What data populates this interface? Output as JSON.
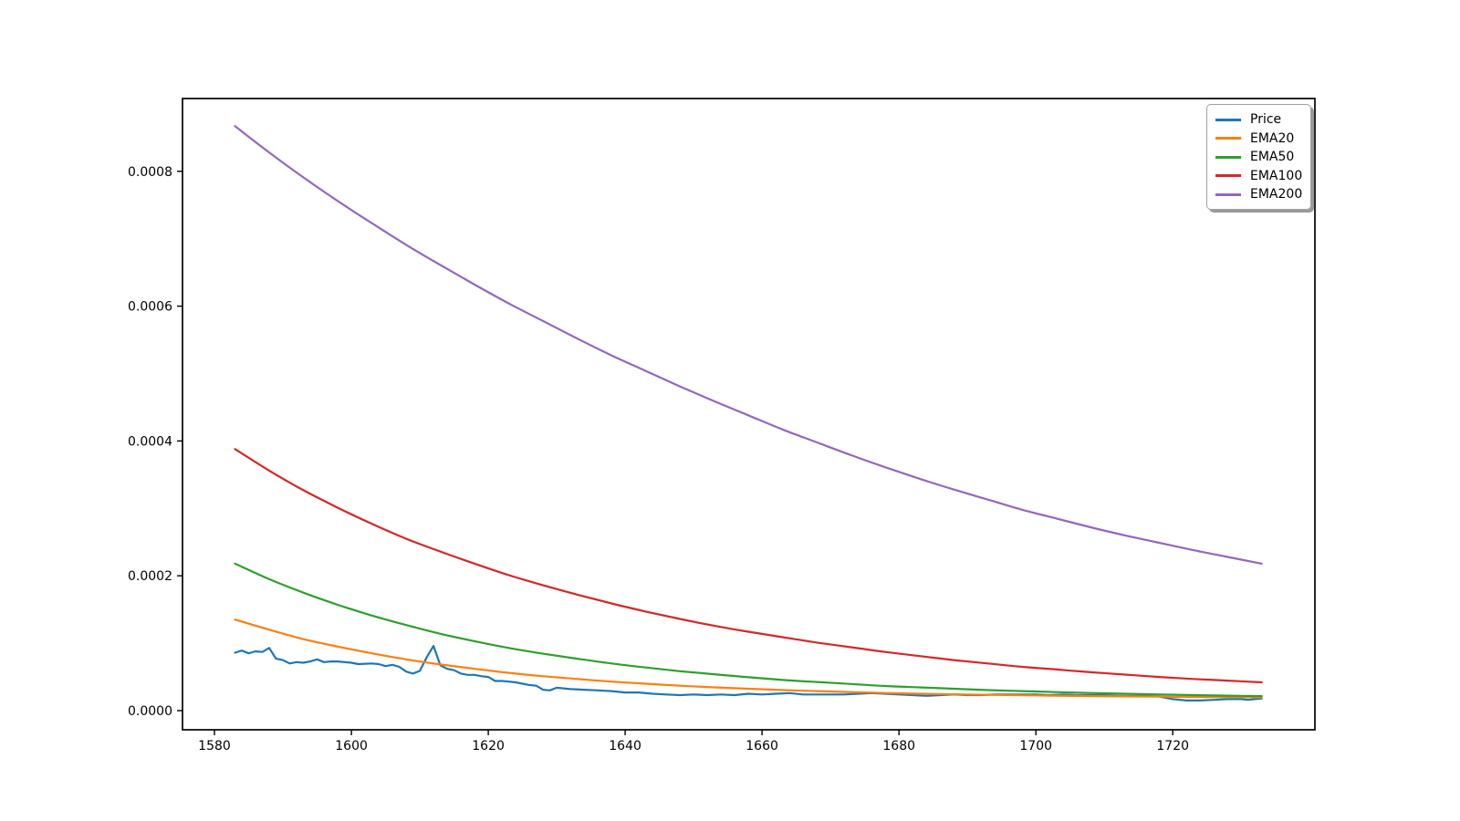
{
  "figure": {
    "background": "#ffffff"
  },
  "chart_data": {
    "type": "line",
    "title": "",
    "xlabel": "",
    "ylabel": "",
    "grid": false,
    "xlim": [
      1575.33,
      1740.77
    ],
    "ylim": [
      -2.84e-05,
      0.000908
    ],
    "xticks": [
      1580,
      1600,
      1620,
      1640,
      1660,
      1680,
      1700,
      1720
    ],
    "xtick_labels": [
      "1580",
      "1600",
      "1620",
      "1640",
      "1660",
      "1680",
      "1700",
      "1720"
    ],
    "ytick_values": [
      0.0,
      0.0002,
      0.0004,
      0.0006,
      0.0008
    ],
    "ytick_labels": [
      "0.0000",
      "0.0002",
      "0.0004",
      "0.0006",
      "0.0008"
    ],
    "legend": {
      "position": "upper right",
      "shadow": true
    },
    "series": [
      {
        "name": "Price",
        "color": "#1f77b4",
        "smooth": false,
        "x": [
          1583,
          1584,
          1585,
          1586,
          1587,
          1588,
          1589,
          1590,
          1591,
          1592,
          1593,
          1594,
          1595,
          1596,
          1597,
          1598,
          1600,
          1601,
          1603,
          1604,
          1605,
          1606,
          1607,
          1608,
          1609,
          1610,
          1611,
          1612,
          1613,
          1614,
          1615,
          1616,
          1617,
          1618,
          1619,
          1620,
          1621,
          1622,
          1623,
          1624,
          1625,
          1626,
          1627,
          1628,
          1629,
          1630,
          1631,
          1632,
          1634,
          1636,
          1638,
          1640,
          1642,
          1644,
          1646,
          1648,
          1650,
          1652,
          1654,
          1656,
          1658,
          1660,
          1662,
          1664,
          1666,
          1668,
          1670,
          1672,
          1674,
          1676,
          1678,
          1680,
          1682,
          1684,
          1686,
          1688,
          1690,
          1692,
          1694,
          1696,
          1698,
          1700,
          1702,
          1704,
          1706,
          1708,
          1710,
          1712,
          1714,
          1716,
          1718,
          1720,
          1722,
          1724,
          1726,
          1728,
          1730,
          1731,
          1733
        ],
        "y": [
          8.6e-05,
          8.9e-05,
          8.5e-05,
          8.8e-05,
          8.7e-05,
          9.3e-05,
          7.7e-05,
          7.5e-05,
          7e-05,
          7.2e-05,
          7.1e-05,
          7.3e-05,
          7.6e-05,
          7.2e-05,
          7.3e-05,
          7.3e-05,
          7.1e-05,
          6.9e-05,
          7e-05,
          6.9e-05,
          6.6e-05,
          6.8e-05,
          6.5e-05,
          5.8e-05,
          5.5e-05,
          5.9e-05,
          7.9e-05,
          9.6e-05,
          6.7e-05,
          6.2e-05,
          6e-05,
          5.5e-05,
          5.3e-05,
          5.3e-05,
          5.1e-05,
          5e-05,
          4.4e-05,
          4.4e-05,
          4.3e-05,
          4.2e-05,
          4e-05,
          3.8e-05,
          3.7e-05,
          3.1e-05,
          3e-05,
          3.4e-05,
          3.3e-05,
          3.2e-05,
          3.1e-05,
          3e-05,
          2.9e-05,
          2.7e-05,
          2.7e-05,
          2.5e-05,
          2.4e-05,
          2.3e-05,
          2.4e-05,
          2.3e-05,
          2.4e-05,
          2.3e-05,
          2.5e-05,
          2.4e-05,
          2.5e-05,
          2.6e-05,
          2.4e-05,
          2.4e-05,
          2.4e-05,
          2.4e-05,
          2.5e-05,
          2.6e-05,
          2.5e-05,
          2.4e-05,
          2.3e-05,
          2.2e-05,
          2.3e-05,
          2.4e-05,
          2.3e-05,
          2.3e-05,
          2.4e-05,
          2.4e-05,
          2.4e-05,
          2.4e-05,
          2.3e-05,
          2.4e-05,
          2.3e-05,
          2.3e-05,
          2.3e-05,
          2.2e-05,
          2.2e-05,
          2.2e-05,
          2.1e-05,
          1.7e-05,
          1.5e-05,
          1.5e-05,
          1.6e-05,
          1.7e-05,
          1.7e-05,
          1.6e-05,
          1.8e-05
        ]
      },
      {
        "name": "EMA20",
        "color": "#ff7f0e",
        "smooth": true,
        "x": [
          1583,
          1588,
          1593,
          1598,
          1603,
          1608,
          1613,
          1618,
          1623,
          1628,
          1633,
          1638,
          1643,
          1648,
          1653,
          1658,
          1663,
          1668,
          1673,
          1678,
          1683,
          1688,
          1693,
          1698,
          1703,
          1708,
          1713,
          1718,
          1723,
          1728,
          1733
        ],
        "y": [
          0.000135,
          0.00012,
          0.000106,
          9.5e-05,
          8.5e-05,
          7.6e-05,
          6.85e-05,
          6.2e-05,
          5.6e-05,
          5.1e-05,
          4.7e-05,
          4.3e-05,
          4e-05,
          3.7e-05,
          3.45e-05,
          3.25e-05,
          3.05e-05,
          2.9e-05,
          2.75e-05,
          2.62e-05,
          2.51e-05,
          2.42e-05,
          2.34e-05,
          2.27e-05,
          2.21e-05,
          2.15e-05,
          2.11e-05,
          2.07e-05,
          2.03e-05,
          2e-05,
          1.96e-05
        ]
      },
      {
        "name": "EMA50",
        "color": "#2ca02c",
        "smooth": true,
        "x": [
          1583,
          1588,
          1593,
          1598,
          1603,
          1608,
          1613,
          1618,
          1623,
          1628,
          1633,
          1638,
          1643,
          1648,
          1653,
          1658,
          1663,
          1668,
          1673,
          1678,
          1683,
          1688,
          1693,
          1698,
          1703,
          1708,
          1713,
          1718,
          1723,
          1728,
          1733
        ],
        "y": [
          0.000218,
          0.000195,
          0.000175,
          0.000157,
          0.000141,
          0.000127,
          0.000114,
          0.000103,
          9.3e-05,
          8.45e-05,
          7.7e-05,
          7e-05,
          6.4e-05,
          5.85e-05,
          5.4e-05,
          4.95e-05,
          4.55e-05,
          4.25e-05,
          3.95e-05,
          3.65e-05,
          3.45e-05,
          3.25e-05,
          3.05e-05,
          2.9e-05,
          2.75e-05,
          2.62e-05,
          2.5e-05,
          2.4e-05,
          2.3e-05,
          2.22e-05,
          2.15e-05
        ]
      },
      {
        "name": "EMA100",
        "color": "#d62728",
        "smooth": true,
        "x": [
          1583,
          1588,
          1593,
          1598,
          1603,
          1608,
          1613,
          1618,
          1623,
          1628,
          1633,
          1638,
          1643,
          1648,
          1653,
          1658,
          1663,
          1668,
          1673,
          1678,
          1683,
          1688,
          1693,
          1698,
          1703,
          1708,
          1713,
          1718,
          1723,
          1728,
          1733
        ],
        "y": [
          0.000388,
          0.000356,
          0.000327,
          0.000301,
          0.000277,
          0.000255,
          0.000236,
          0.000218,
          0.000201,
          0.000186,
          0.000172,
          0.000159,
          0.000147,
          0.000136,
          0.000126,
          0.000117,
          0.000109,
          0.000101,
          9.4e-05,
          8.7e-05,
          8.1e-05,
          7.5e-05,
          7e-05,
          6.5e-05,
          6.1e-05,
          5.7e-05,
          5.35e-05,
          5e-05,
          4.7e-05,
          4.45e-05,
          4.2e-05
        ]
      },
      {
        "name": "EMA200",
        "color": "#9467bd",
        "smooth": true,
        "x": [
          1583,
          1588,
          1593,
          1598,
          1603,
          1608,
          1613,
          1618,
          1623,
          1628,
          1633,
          1638,
          1643,
          1648,
          1653,
          1658,
          1663,
          1668,
          1673,
          1678,
          1683,
          1688,
          1693,
          1698,
          1703,
          1708,
          1713,
          1718,
          1723,
          1728,
          1733
        ],
        "y": [
          0.000867,
          0.000828,
          0.000791,
          0.000756,
          0.000723,
          0.000691,
          0.000661,
          0.000632,
          0.000604,
          0.000578,
          0.000552,
          0.000527,
          0.000504,
          0.000481,
          0.000459,
          0.000438,
          0.000417,
          0.000398,
          0.000379,
          0.000361,
          0.000344,
          0.000328,
          0.000313,
          0.000298,
          0.000285,
          0.000272,
          0.00026,
          0.000249,
          0.000238,
          0.000228,
          0.000218
        ]
      }
    ]
  }
}
